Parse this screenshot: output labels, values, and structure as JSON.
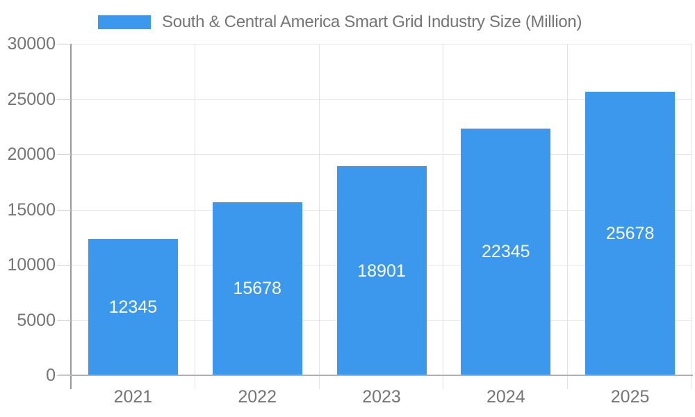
{
  "chart_data": {
    "type": "bar",
    "title": "South & Central America Smart Grid Industry Size (Million)",
    "categories": [
      "2021",
      "2022",
      "2023",
      "2024",
      "2025"
    ],
    "values": [
      12345,
      15678,
      18901,
      22345,
      25678
    ],
    "value_labels": [
      "12345",
      "15678",
      "18901",
      "22345",
      "25678"
    ],
    "xlabel": "",
    "ylabel": "",
    "ylim": [
      0,
      30000
    ],
    "ytick_step": 5000,
    "ytick_labels": [
      "0",
      "5000",
      "10000",
      "15000",
      "20000",
      "25000",
      "30000"
    ],
    "grid": true,
    "legend_position": "top",
    "bar_color": "#3b98ec",
    "value_label_color": "#ffffff",
    "axis_label_color": "#757575",
    "gridline_color": "#e6e6e6"
  }
}
